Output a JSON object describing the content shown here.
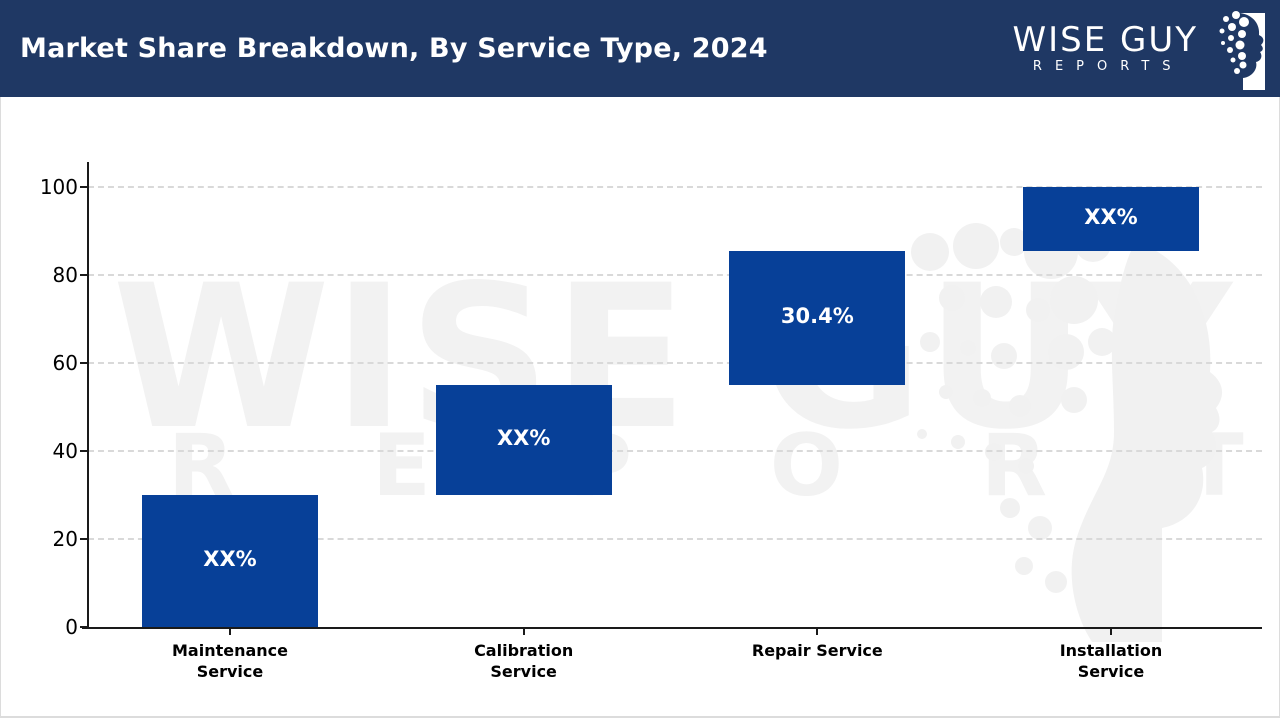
{
  "header": {
    "title": "Market Share Breakdown, By Service Type, 2024",
    "logo": {
      "line1": "WISE GUY",
      "line2": "REPORTS"
    }
  },
  "watermark": {
    "line1": "WISE GUY",
    "line2": "R E P O R T S"
  },
  "colors": {
    "header_bg": "#1f3864",
    "bar": "#074098",
    "bar_label": "#ffffff",
    "gridline": "#d9d9d9",
    "axis": "#1a1a1a",
    "watermark": "#f2f2f2"
  },
  "chart_data": {
    "type": "bar",
    "subtype": "waterfall",
    "title": "Market Share Breakdown, By Service Type, 2024",
    "xlabel": "",
    "ylabel": "",
    "categories": [
      "Maintenance Service",
      "Calibration Service",
      "Repair Service",
      "Installation Service"
    ],
    "series": [
      {
        "name": "Maintenance Service",
        "start": 0,
        "end": 30,
        "value": 30,
        "label": "XX%"
      },
      {
        "name": "Calibration Service",
        "start": 30,
        "end": 55,
        "value": 25,
        "label": "XX%"
      },
      {
        "name": "Repair Service",
        "start": 55,
        "end": 85.4,
        "value": 30.4,
        "label": "30.4%"
      },
      {
        "name": "Installation Service",
        "start": 85.4,
        "end": 100,
        "value": 14.6,
        "label": "XX%"
      }
    ],
    "yticks": [
      0,
      20,
      40,
      60,
      80,
      100
    ],
    "ylim": [
      0,
      105
    ],
    "grid": "horizontal-dashed",
    "legend": "none"
  }
}
